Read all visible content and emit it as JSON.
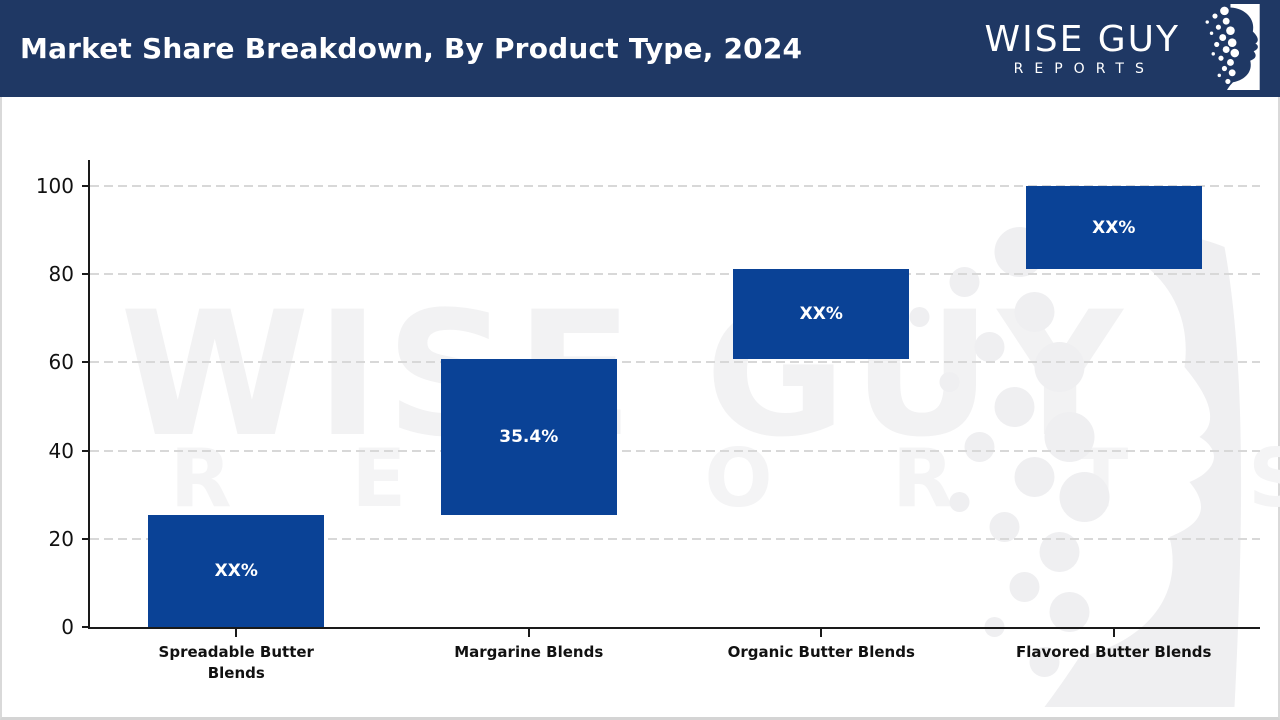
{
  "header": {
    "title": "Market Share Breakdown, By Product Type, 2024",
    "logo": {
      "line1": "WISE GUY",
      "line2": "REPORTS"
    }
  },
  "watermark": {
    "line1": "WISE GUY",
    "line2": "R E P O R T S"
  },
  "colors": {
    "header_bg": "#1f3864",
    "bar": "#0a4296",
    "bar_label": "#ffffff",
    "grid": "#d8d8d8",
    "axis": "#1a1a1a",
    "watermark": "#efeff1"
  },
  "chart_data": {
    "type": "bar",
    "subtype": "floating-waterfall",
    "title": "Market Share Breakdown, By Product Type, 2024",
    "categories": [
      "Spreadable Butter Blends",
      "Margarine Blends",
      "Organic Butter Blends",
      "Flavored Butter Blends"
    ],
    "series": [
      {
        "name": "Market Share %",
        "segments": [
          {
            "category": "Spreadable Butter Blends",
            "start": 0,
            "end": 25.4,
            "label": "XX%"
          },
          {
            "category": "Margarine Blends",
            "start": 25.4,
            "end": 60.8,
            "label": "35.4%"
          },
          {
            "category": "Organic Butter Blends",
            "start": 60.8,
            "end": 81.1,
            "label": "XX%"
          },
          {
            "category": "Flavored Butter Blends",
            "start": 81.1,
            "end": 100,
            "label": "XX%"
          }
        ]
      }
    ],
    "xlabel": "",
    "ylabel": "",
    "ylim": [
      0,
      105
    ],
    "yticks": [
      0,
      20,
      40,
      60,
      80,
      100
    ],
    "grid": "horizontal-dashed",
    "legend": "none"
  }
}
